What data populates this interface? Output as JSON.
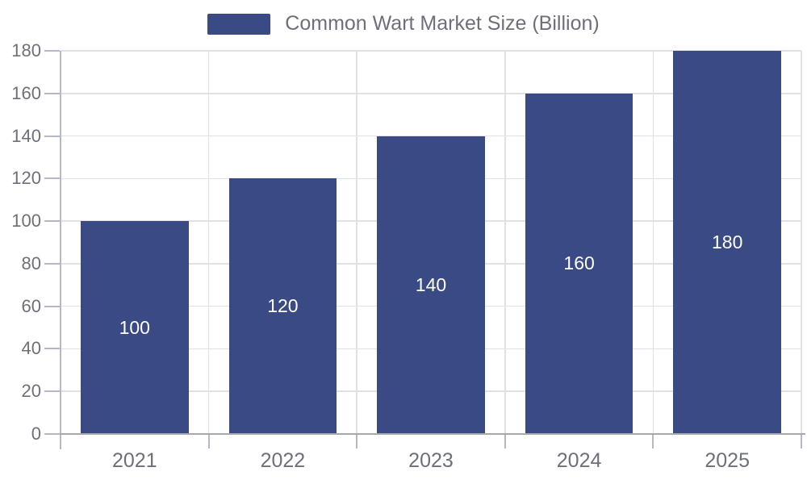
{
  "chart_data": {
    "type": "bar",
    "title": "Common Wart Market Size (Billion)",
    "legend": {
      "label": "Common Wart Market Size (Billion)",
      "position": "top-center"
    },
    "categories": [
      "2021",
      "2022",
      "2023",
      "2024",
      "2025"
    ],
    "series": [
      {
        "name": "Common Wart Market Size (Billion)",
        "values": [
          100,
          120,
          140,
          160,
          180
        ]
      }
    ],
    "bar_value_labels": [
      "100",
      "120",
      "140",
      "160",
      "180"
    ],
    "xlabel": "",
    "ylabel": "",
    "ylim": [
      0,
      180
    ],
    "y_ticks": [
      0,
      20,
      40,
      60,
      80,
      100,
      120,
      140,
      160,
      180
    ],
    "grid": true,
    "value_label_position": "inside-center",
    "colors": {
      "bar": "#3A4A85",
      "bar_label": "#FFFFFF",
      "grid": "#E0E0E6",
      "x_axis_line": "#A6A8AC",
      "y_axis_line": "#B4B8C8",
      "tick": "#B4B8C8",
      "axis_label": "#6E7079",
      "legend_text": "#6E7079",
      "background": "#FFFFFF"
    }
  }
}
